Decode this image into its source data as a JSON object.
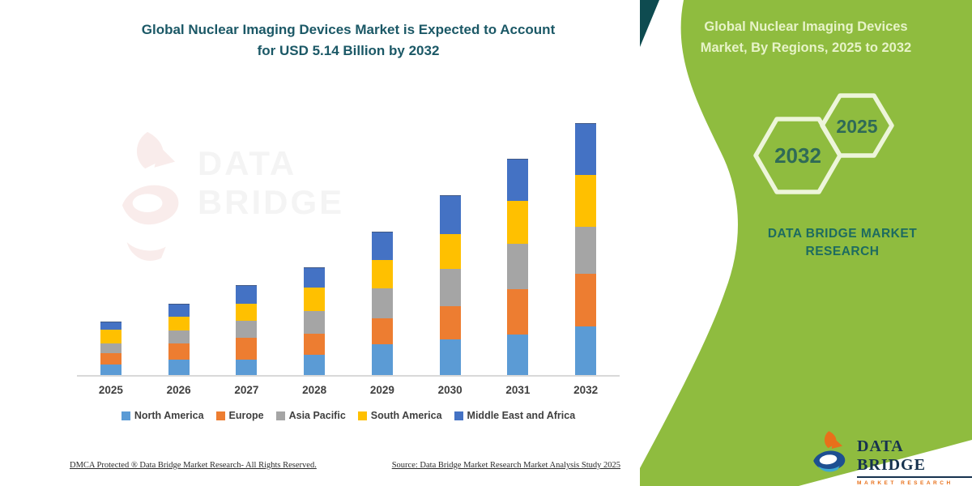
{
  "header": {
    "title_line1": "Global Nuclear Imaging Devices Market is Expected to Account",
    "title_line2": "for USD 5.14 Billion by 2032"
  },
  "chart_data": {
    "type": "bar",
    "stacked": true,
    "title": "Global Nuclear Imaging Devices Market, By Regions, 2025 to 2032",
    "unit": "USD Billion",
    "categories": [
      "2025",
      "2026",
      "2027",
      "2028",
      "2029",
      "2030",
      "2031",
      "2032"
    ],
    "series": [
      {
        "name": "North America",
        "color": "#5B9BD5",
        "values": [
          0.21,
          0.31,
          0.32,
          0.42,
          0.63,
          0.72,
          0.83,
          0.99
        ]
      },
      {
        "name": "Europe",
        "color": "#ED7D31",
        "values": [
          0.23,
          0.33,
          0.44,
          0.43,
          0.52,
          0.69,
          0.92,
          1.08
        ]
      },
      {
        "name": "Asia Pacific",
        "color": "#A5A5A5",
        "values": [
          0.2,
          0.27,
          0.35,
          0.46,
          0.62,
          0.75,
          0.92,
          0.96
        ]
      },
      {
        "name": "South America",
        "color": "#FFC000",
        "values": [
          0.28,
          0.28,
          0.34,
          0.47,
          0.58,
          0.72,
          0.88,
          1.06
        ]
      },
      {
        "name": "Middle East and Africa",
        "color": "#4472C4",
        "values": [
          0.18,
          0.26,
          0.38,
          0.42,
          0.57,
          0.79,
          0.86,
          1.05
        ]
      }
    ],
    "totals": [
      1.1,
      1.45,
      1.83,
      2.2,
      2.92,
      3.67,
      4.41,
      5.14
    ],
    "ylim": [
      0,
      5.2
    ],
    "grid": false,
    "legend_position": "bottom"
  },
  "watermark": {
    "text": "DATA BRIDGE"
  },
  "side_panel": {
    "title_line1": "Global Nuclear Imaging Devices",
    "title_line2": "Market, By Regions, 2025 to 2032",
    "hexagons": [
      {
        "label": "2032"
      },
      {
        "label": "2025"
      }
    ],
    "org_line1": "DATA BRIDGE MARKET",
    "org_line2": "RESEARCH",
    "colors": {
      "background": "#8FBC3F",
      "accent_dark": "#0E4B50"
    }
  },
  "logo": {
    "name_line": "DATA BRIDGE",
    "sub_line": "MARKET RESEARCH"
  },
  "footer": {
    "left": "DMCA Protected ® Data Bridge Market Research- All Rights Reserved.",
    "right": "Source: Data Bridge Market Research Market Analysis Study 2025"
  }
}
